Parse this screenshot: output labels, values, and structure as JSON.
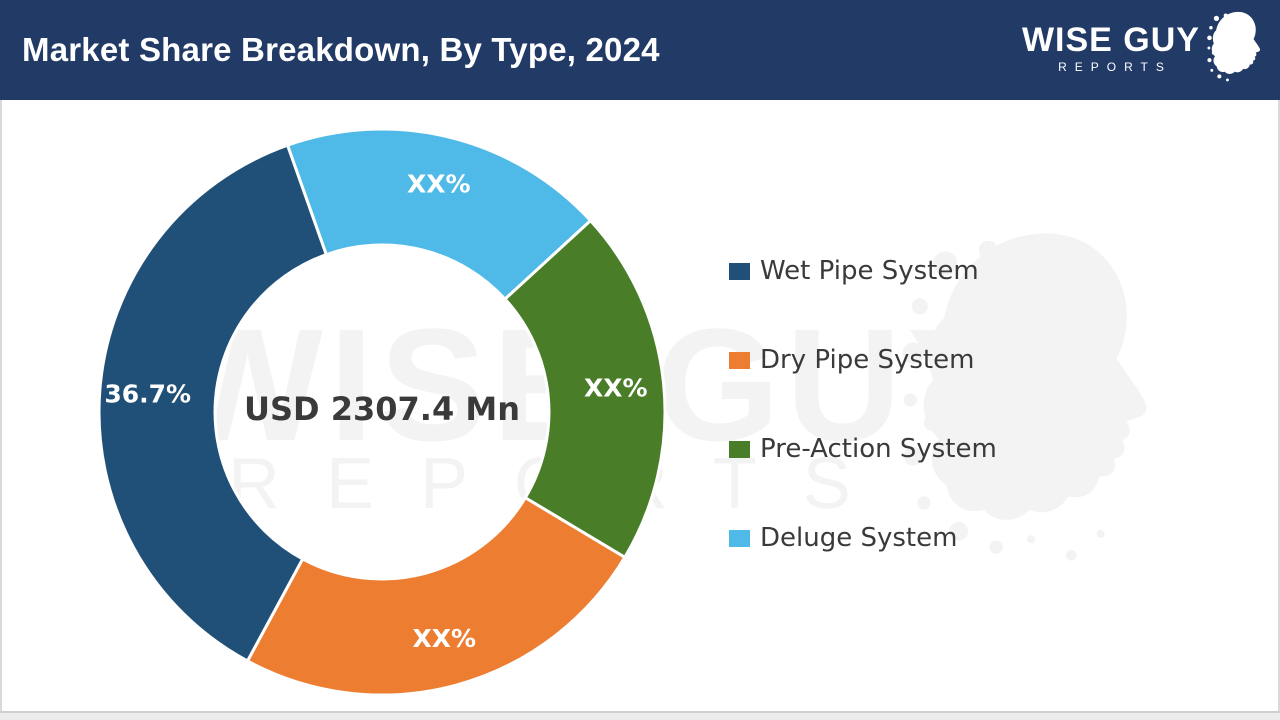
{
  "header": {
    "title": "Market Share Breakdown, By Type, 2024",
    "background_color": "#213A66",
    "logo": {
      "name_line": "WISE GUY",
      "reports_line": "REPORTS"
    }
  },
  "chart_data": {
    "type": "pie",
    "subtype": "donut",
    "title": "Market Share Breakdown, By Type, 2024",
    "center_label": "USD 2307.4 Mn",
    "direction": "clockwise",
    "start_angle_cw_from_north_deg": -19.5,
    "inner_radius_ratio": 0.59,
    "label_text_color": "#ffffff",
    "center_label_color": "#3a3a3a",
    "segments": [
      {
        "label": "Deluge System",
        "value_pct": 18.6,
        "display_label": "XX%",
        "color": "#4FB9E8"
      },
      {
        "label": "Pre-Action System",
        "value_pct": 20.4,
        "display_label": "XX%",
        "color": "#4A7D28"
      },
      {
        "label": "Dry Pipe System",
        "value_pct": 24.3,
        "display_label": "XX%",
        "color": "#ED7D31"
      },
      {
        "label": "Wet Pipe System",
        "value_pct": 36.7,
        "display_label": "36.7%",
        "color": "#205078"
      }
    ],
    "legend": {
      "position": "right",
      "items": [
        {
          "label": "Wet Pipe System",
          "color": "#205078"
        },
        {
          "label": "Dry Pipe System",
          "color": "#ED7D31"
        },
        {
          "label": "Pre-Action System",
          "color": "#4A7D28"
        },
        {
          "label": "Deluge System",
          "color": "#4FB9E8"
        }
      ]
    }
  },
  "watermark": {
    "line1": "WISE GUY",
    "line2": "REPORTS",
    "color": "#f3f3f3"
  }
}
